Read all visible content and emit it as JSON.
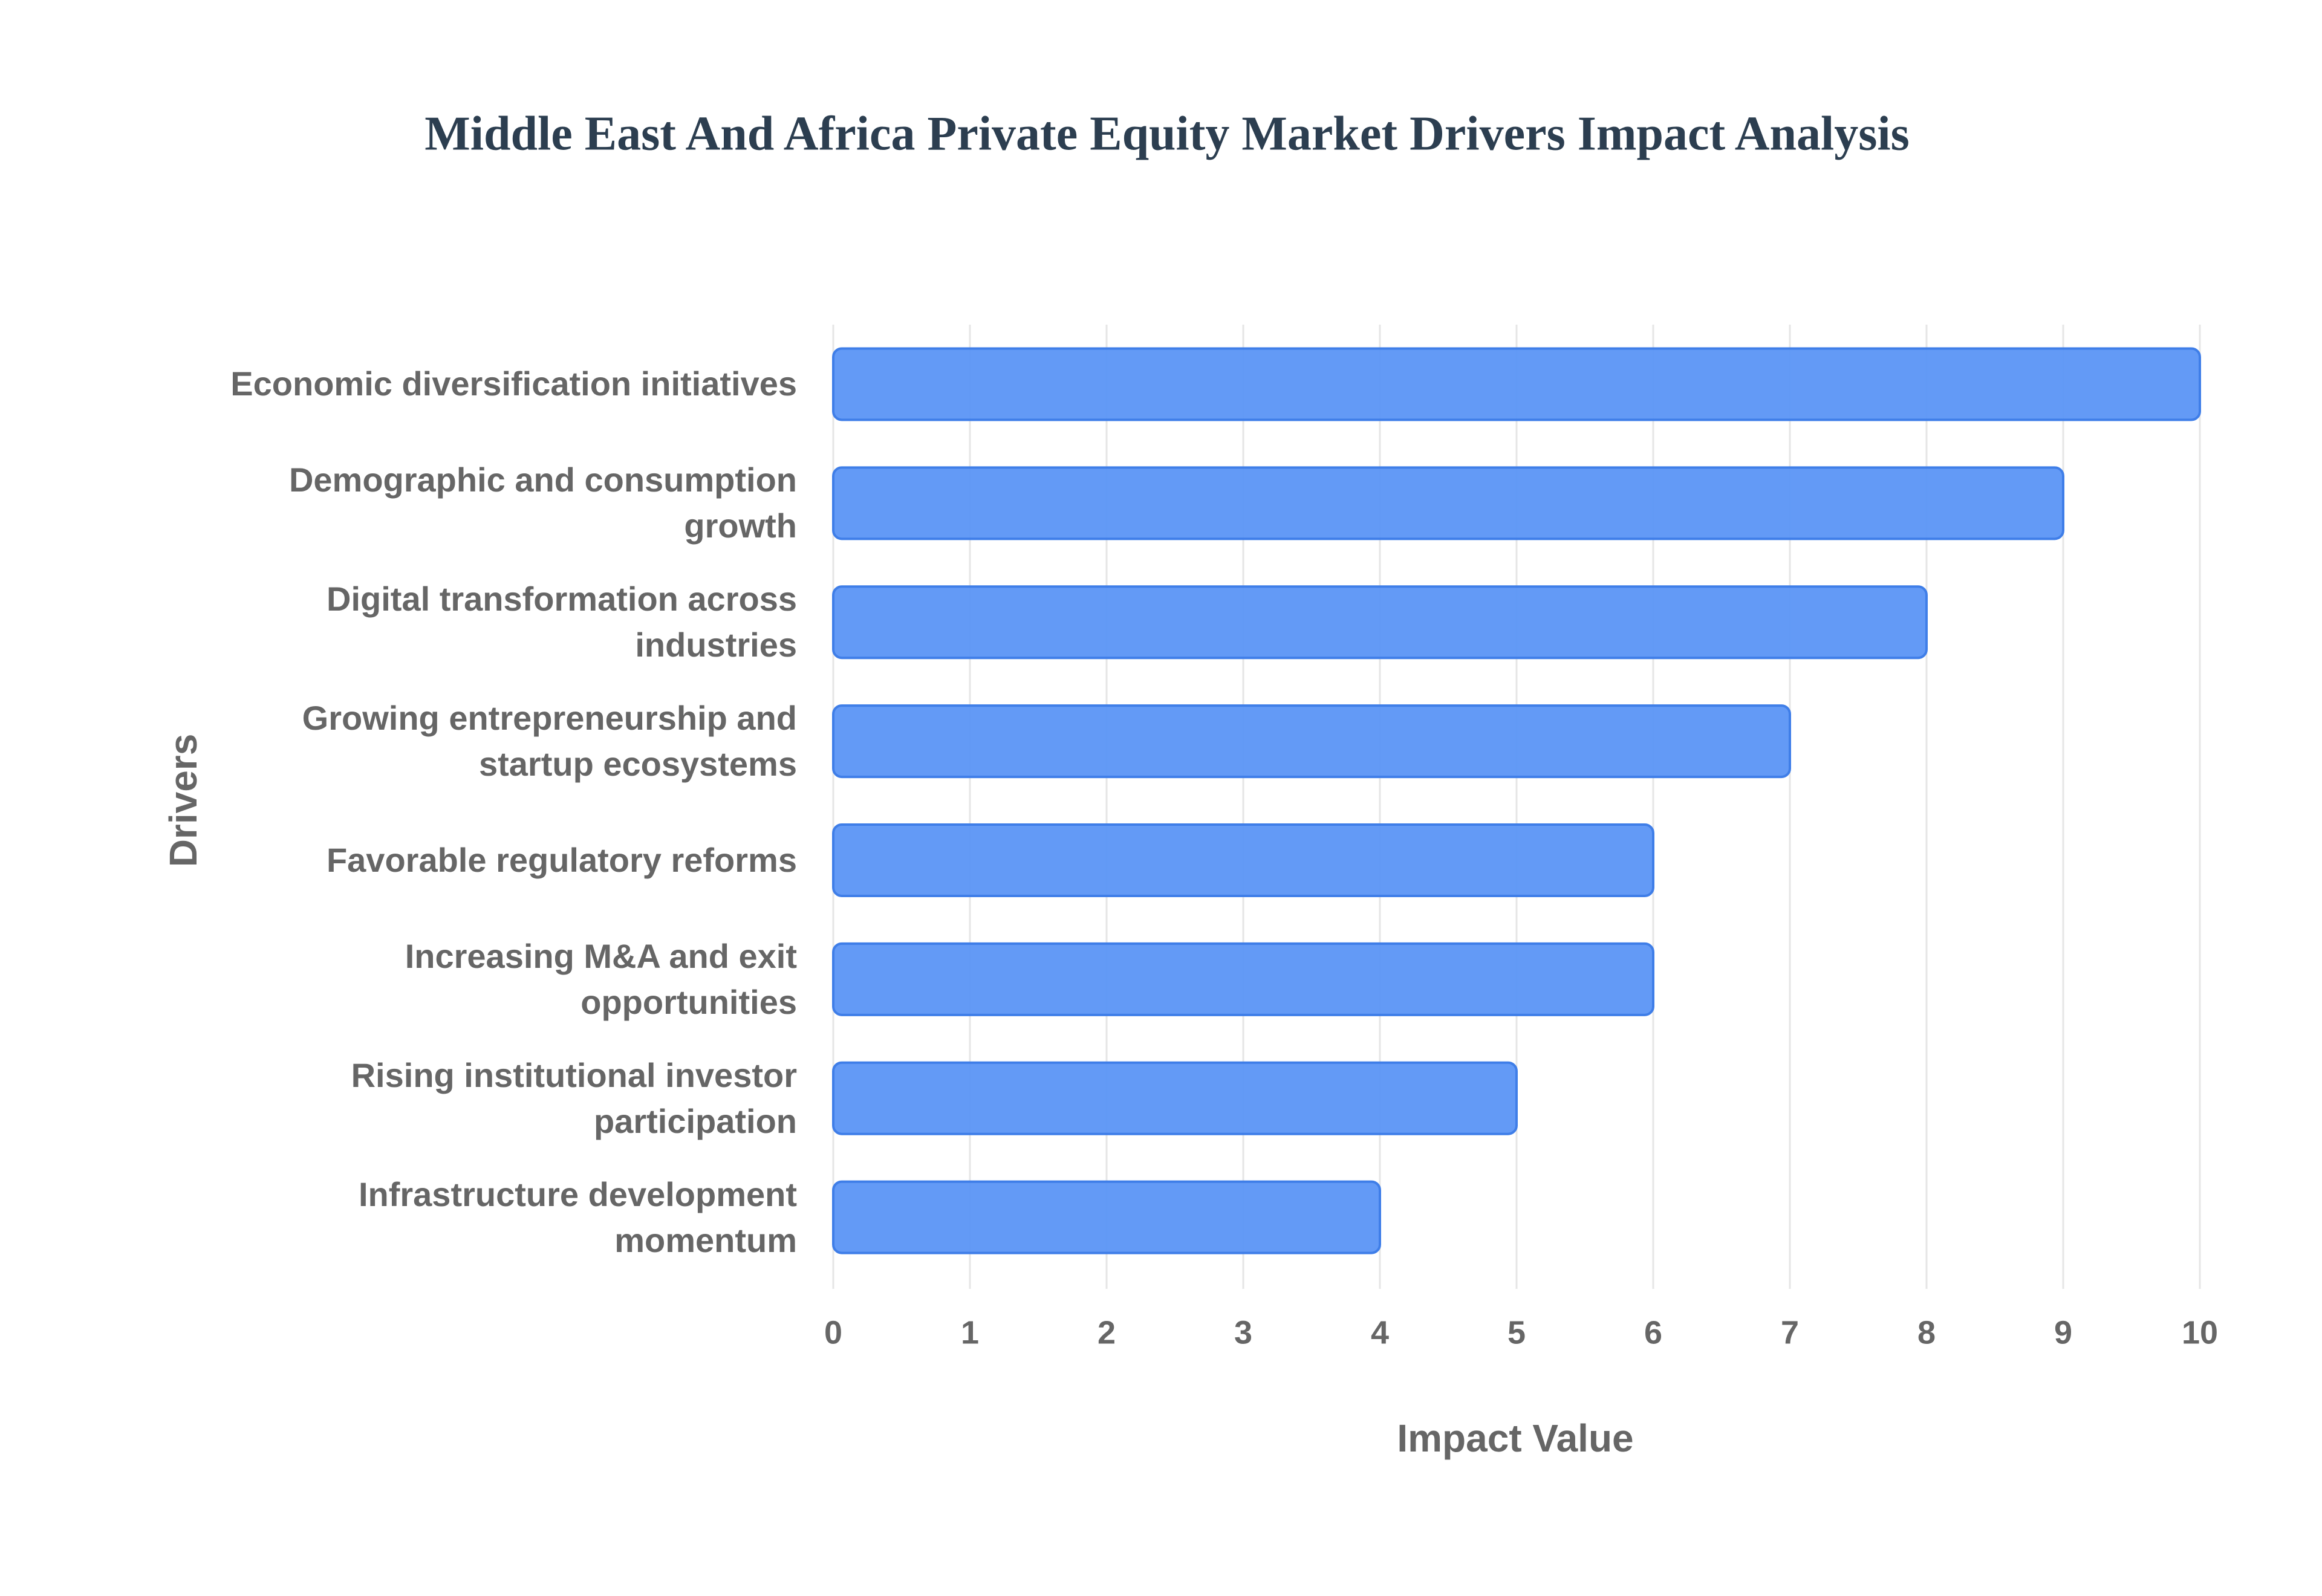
{
  "chart_data": {
    "type": "bar",
    "orientation": "horizontal",
    "title": "Middle East And Africa Private Equity Market Drivers Impact Analysis",
    "x_label": "Impact Value",
    "y_label": "Drivers",
    "categories": [
      "Economic diversification initiatives",
      "Demographic and consumption growth",
      "Digital transformation across industries",
      "Growing entrepreneurship and startup ecosystems",
      "Favorable regulatory reforms",
      "Increasing M&A and exit opportunities",
      "Rising institutional investor participation",
      "Infrastructure development momentum"
    ],
    "values": [
      10,
      9,
      8,
      7,
      6,
      6,
      5,
      4
    ],
    "color": "#5b95f5",
    "xlim": [
      0,
      10
    ],
    "xticks": [
      0,
      1,
      2,
      3,
      4,
      5,
      6,
      7,
      8,
      9,
      10
    ],
    "grid": true
  }
}
